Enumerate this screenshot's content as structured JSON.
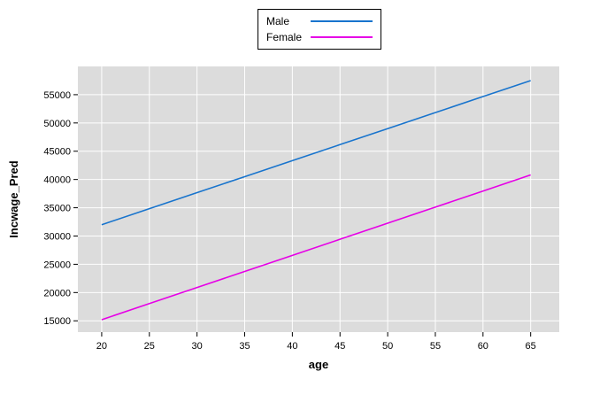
{
  "colors": {
    "page_background": "#ffffff",
    "panel_background": "#dcdcdc",
    "grid": "#ffffff",
    "axis_text": "#000000",
    "male_line": "#1874cd",
    "female_line": "#e600e6"
  },
  "chart_data": {
    "type": "line",
    "title": "",
    "xlabel": "age",
    "ylabel": "Incwage_Pred",
    "x": [
      20,
      25,
      30,
      35,
      40,
      45,
      50,
      55,
      60,
      65
    ],
    "series": [
      {
        "name": "Male",
        "color": "#1874cd",
        "values": [
          32000,
          34833,
          37667,
          40500,
          43333,
          46167,
          49000,
          51833,
          54667,
          57500
        ]
      },
      {
        "name": "Female",
        "color": "#e600e6",
        "values": [
          15200,
          18044,
          20889,
          23733,
          26578,
          29422,
          32267,
          35111,
          37956,
          40800
        ]
      }
    ],
    "xticks": [
      20,
      25,
      30,
      35,
      40,
      45,
      50,
      55,
      60,
      65
    ],
    "yticks": [
      15000,
      20000,
      25000,
      30000,
      35000,
      40000,
      45000,
      50000,
      55000
    ],
    "xlim": [
      17.5,
      68
    ],
    "ylim": [
      13000,
      60000
    ],
    "grid": true,
    "legend_position": "top-center",
    "panel_background": "#dcdcdc",
    "grid_color": "#ffffff"
  }
}
